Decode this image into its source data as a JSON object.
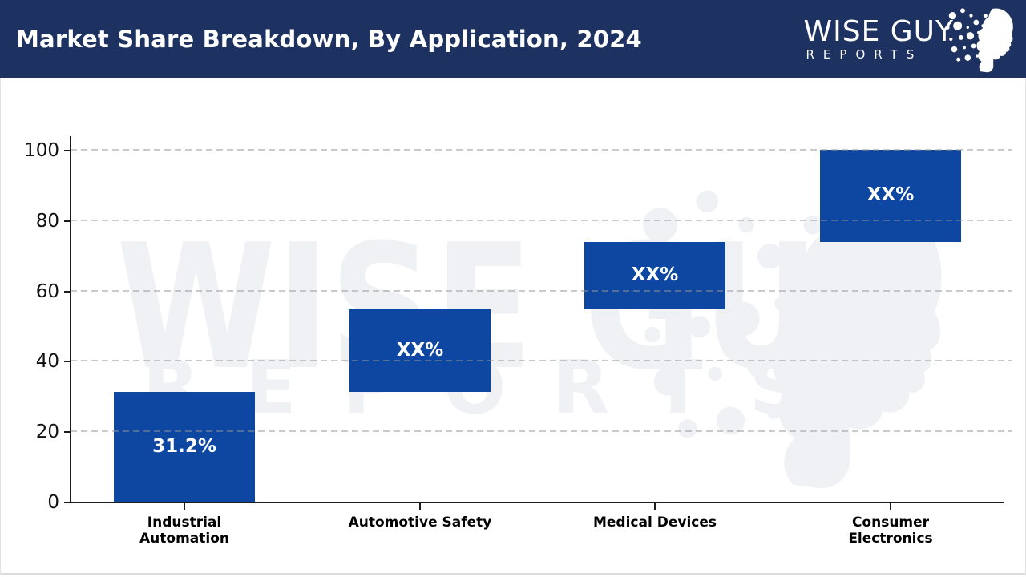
{
  "header": {
    "title": "Market Share Breakdown, By Application, 2024",
    "logo": {
      "line1": "WISE GUY",
      "line2": "REPORTS"
    }
  },
  "watermark": {
    "line1": "WISE GUY",
    "line2": "REPORTS"
  },
  "colors": {
    "header_bg": "#1e3261",
    "bar": "#0d47a1",
    "axis": "#1c1c1c",
    "watermark": "#f0f1f4",
    "grid_dash": "#c9c9c9"
  },
  "chart_data": {
    "type": "bar",
    "subtype": "waterfall",
    "title": "Market Share Breakdown, By Application, 2024",
    "xlabel": "",
    "ylabel": "",
    "ylim": [
      0,
      104
    ],
    "grid": "horizontal-dashed",
    "legend": "none",
    "yticks": [
      0,
      20,
      40,
      60,
      80,
      100
    ],
    "categories": [
      "Industrial Automation",
      "Automotive Safety",
      "Medical Devices",
      "Consumer Electronics"
    ],
    "category_tick_lines": [
      [
        "Industrial",
        "Automation"
      ],
      [
        "Automotive Safety"
      ],
      [
        "Medical Devices"
      ],
      [
        "Consumer",
        "Electronics"
      ]
    ],
    "bars": [
      {
        "category": "Industrial Automation",
        "start": 0,
        "end": 31.2,
        "value_label": "31.2%"
      },
      {
        "category": "Automotive Safety",
        "start": 31.2,
        "end": 54.6,
        "value_label": "XX%"
      },
      {
        "category": "Medical Devices",
        "start": 54.6,
        "end": 73.9,
        "value_label": "XX%"
      },
      {
        "category": "Consumer Electronics",
        "start": 73.9,
        "end": 100,
        "value_label": "XX%"
      }
    ]
  }
}
